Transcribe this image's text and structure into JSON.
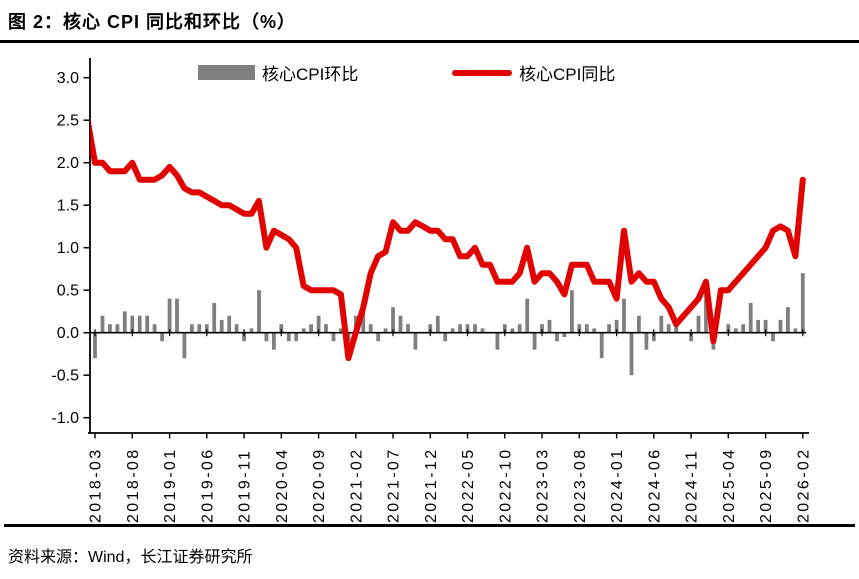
{
  "title": "图 2：核心 CPI 同比和环比（%）",
  "source": "资料来源：Wind，长江证券研究所",
  "legend": {
    "mom": "核心CPI环比",
    "yoy": "核心CPI同比"
  },
  "colors": {
    "line": "#e00300",
    "bar": "#7f7f7f",
    "axis": "#000000"
  },
  "chart_data": {
    "type": "bar+line",
    "title": "核心 CPI 同比和环比（%）",
    "ylim": [
      -1.0,
      3.0
    ],
    "grid": false,
    "legend_position": "top",
    "y_ticks": [
      3.0,
      2.5,
      2.0,
      1.5,
      1.0,
      0.5,
      0.0,
      -0.5,
      -1.0
    ],
    "x_tick_labels": [
      "2018-03",
      "2018-08",
      "2019-01",
      "2019-06",
      "2019-11",
      "2020-04",
      "2020-09",
      "2021-02",
      "2021-07",
      "2021-12",
      "2022-05",
      "2022-10",
      "2023-03",
      "2023-08",
      "2024-01",
      "2024-06",
      "2024-11",
      "2025-04",
      "2025-09",
      "2026-02"
    ],
    "x": [
      "2018-02",
      "2018-03",
      "2018-04",
      "2018-05",
      "2018-06",
      "2018-07",
      "2018-08",
      "2018-09",
      "2018-10",
      "2018-11",
      "2018-12",
      "2019-01",
      "2019-02",
      "2019-03",
      "2019-04",
      "2019-05",
      "2019-06",
      "2019-07",
      "2019-08",
      "2019-09",
      "2019-10",
      "2019-11",
      "2019-12",
      "2020-01",
      "2020-02",
      "2020-03",
      "2020-04",
      "2020-05",
      "2020-06",
      "2020-07",
      "2020-08",
      "2020-09",
      "2020-10",
      "2020-11",
      "2020-12",
      "2021-01",
      "2021-02",
      "2021-03",
      "2021-04",
      "2021-05",
      "2021-06",
      "2021-07",
      "2021-08",
      "2021-09",
      "2021-10",
      "2021-11",
      "2021-12",
      "2022-01",
      "2022-02",
      "2022-03",
      "2022-04",
      "2022-05",
      "2022-06",
      "2022-07",
      "2022-08",
      "2022-09",
      "2022-10",
      "2022-11",
      "2022-12",
      "2023-01",
      "2023-02",
      "2023-03",
      "2023-04",
      "2023-05",
      "2023-06",
      "2023-07",
      "2023-08",
      "2023-09",
      "2023-10",
      "2023-11",
      "2023-12",
      "2024-01",
      "2024-02",
      "2024-03",
      "2024-04",
      "2024-05",
      "2024-06",
      "2024-07",
      "2024-08",
      "2024-09",
      "2024-10",
      "2024-11",
      "2024-12",
      "2025-01",
      "2025-02",
      "2025-03",
      "2025-04",
      "2025-05",
      "2025-06",
      "2025-07",
      "2025-08",
      "2025-09",
      "2025-10",
      "2025-11",
      "2025-12",
      "2026-01",
      "2026-02"
    ],
    "series": [
      {
        "name": "核心CPI环比",
        "type": "bar",
        "values": [
          0,
          -0.3,
          0.2,
          0.1,
          0.1,
          0.25,
          0.2,
          0.2,
          0.2,
          0.1,
          -0.1,
          0.4,
          0.4,
          -0.3,
          0.1,
          0.1,
          0.1,
          0.35,
          0.15,
          0.2,
          0.1,
          -0.1,
          0.05,
          0.5,
          -0.1,
          -0.2,
          0.1,
          -0.1,
          -0.1,
          0.05,
          0.1,
          0.2,
          0.1,
          -0.1,
          0.05,
          -0.1,
          0.2,
          0.3,
          0.1,
          -0.1,
          0.05,
          0.3,
          0.2,
          0.1,
          -0.2,
          0,
          0.1,
          0.2,
          -0.1,
          0.05,
          0.1,
          0.1,
          0.1,
          0.05,
          0,
          -0.2,
          0.1,
          0.05,
          0.1,
          0.4,
          -0.2,
          0.1,
          0.15,
          -0.1,
          -0.05,
          0.5,
          0.1,
          0.1,
          0.05,
          -0.3,
          0.1,
          0.15,
          0.4,
          -0.5,
          0.2,
          -0.2,
          -0.1,
          0.2,
          0.1,
          0.1,
          0,
          -0.1,
          0.2,
          0.5,
          -0.2,
          0,
          0.1,
          0.05,
          0.1,
          0.35,
          0.15,
          0.15,
          -0.1,
          0.15,
          0.3,
          0.05,
          0.7
        ]
      },
      {
        "name": "核心CPI同比",
        "type": "line",
        "values": [
          2.5,
          2.0,
          2.0,
          1.9,
          1.9,
          1.9,
          2.0,
          1.8,
          1.8,
          1.8,
          1.85,
          1.95,
          1.85,
          1.7,
          1.65,
          1.65,
          1.6,
          1.55,
          1.5,
          1.5,
          1.45,
          1.4,
          1.4,
          1.55,
          1.0,
          1.2,
          1.15,
          1.1,
          1.0,
          0.55,
          0.5,
          0.5,
          0.5,
          0.5,
          0.45,
          -0.3,
          0.0,
          0.3,
          0.7,
          0.9,
          0.95,
          1.3,
          1.2,
          1.2,
          1.3,
          1.25,
          1.2,
          1.2,
          1.1,
          1.1,
          0.9,
          0.9,
          1.0,
          0.8,
          0.8,
          0.6,
          0.6,
          0.6,
          0.7,
          1.0,
          0.6,
          0.7,
          0.7,
          0.6,
          0.45,
          0.8,
          0.8,
          0.8,
          0.6,
          0.6,
          0.6,
          0.4,
          1.2,
          0.6,
          0.7,
          0.6,
          0.6,
          0.4,
          0.3,
          0.1,
          0.2,
          0.3,
          0.4,
          0.6,
          -0.1,
          0.5,
          0.5,
          0.6,
          0.7,
          0.8,
          0.9,
          1.0,
          1.2,
          1.25,
          1.2,
          0.9,
          1.8
        ]
      }
    ]
  }
}
